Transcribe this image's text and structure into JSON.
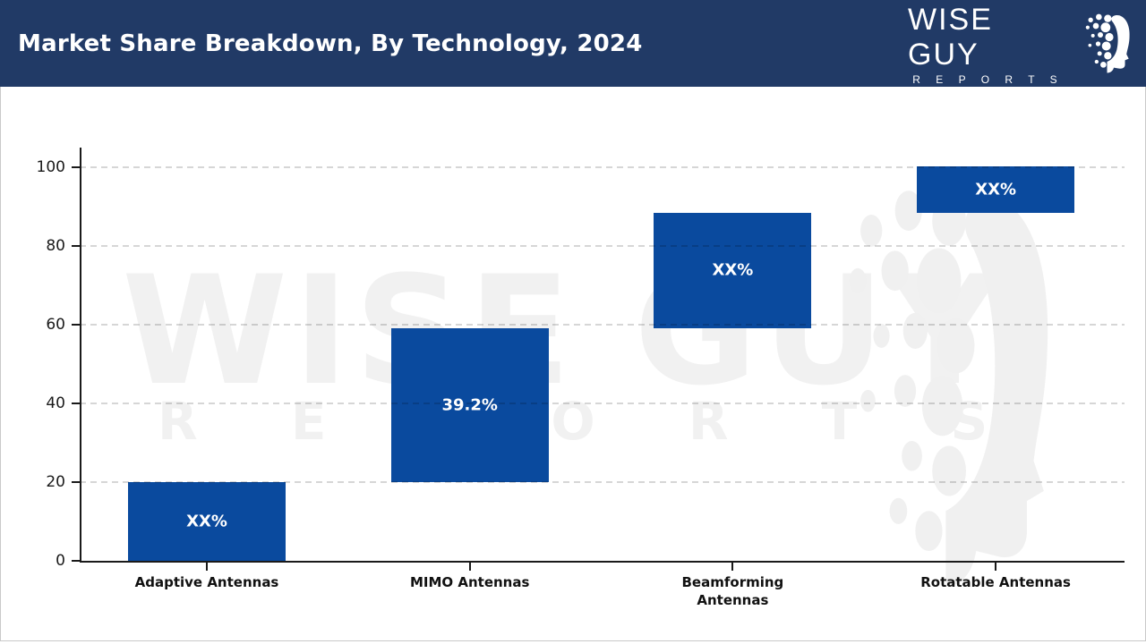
{
  "header": {
    "title": "Market Share Breakdown, By Technology, 2024",
    "bg_color": "#213a66",
    "logo": {
      "line1": "WISE GUY",
      "line2": "R E P O R T S"
    }
  },
  "watermark": {
    "line1": "WISE GUY",
    "line2": "R E P O R T S"
  },
  "chart_data": {
    "type": "bar",
    "subtype": "stacked-waterfall",
    "title": "Market Share Breakdown, By Technology, 2024",
    "categories": [
      "Adaptive Antennas",
      "MIMO Antennas",
      "Beamforming Antennas",
      "Rotatable Antennas"
    ],
    "category_lines": [
      [
        "Adaptive Antennas"
      ],
      [
        "MIMO Antennas"
      ],
      [
        "Beamforming",
        "Antennas"
      ],
      [
        "Rotatable Antennas"
      ]
    ],
    "segments": [
      {
        "category": "Adaptive Antennas",
        "start": 0,
        "end": 20,
        "value_label": "XX%"
      },
      {
        "category": "MIMO Antennas",
        "start": 20,
        "end": 59.2,
        "value_label": "39.2%"
      },
      {
        "category": "Beamforming Antennas",
        "start": 59.2,
        "end": 88.4,
        "value_label": "XX%"
      },
      {
        "category": "Rotatable Antennas",
        "start": 88.4,
        "end": 100.2,
        "value_label": "XX%"
      }
    ],
    "yticks": [
      0,
      20,
      40,
      60,
      80,
      100
    ],
    "ylim": [
      0,
      105
    ],
    "grid": true,
    "legend": false,
    "bar_color": "#0a4a9e",
    "bar_label_color": "#ffffff",
    "axis_color": "#1a1a1a",
    "xlabel": "",
    "ylabel": ""
  }
}
